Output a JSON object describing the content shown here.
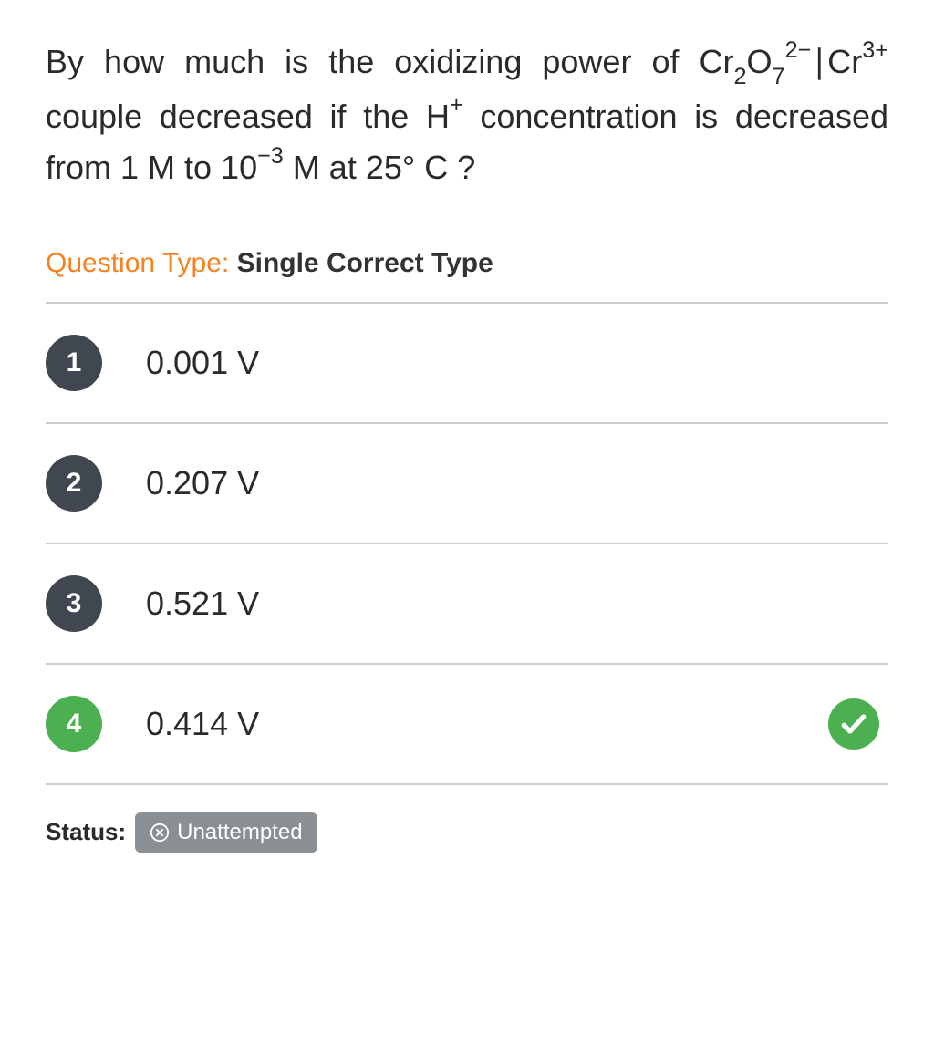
{
  "question": {
    "text_html": "By how much is the oxidizing power of Cr<span class='sub'>2</span>O<span class='sub'>7</span><span class='sup'>2−</span>∣Cr<span class='sup'>3+</span> couple decreased if the H<span class='sup'>+</span> concentration is decreased from 1 M to 10<span class='sup'>−3</span> M at 25° C ?"
  },
  "question_type": {
    "label": "Question Type:",
    "value": "Single Correct Type",
    "label_color": "#f58220",
    "value_color": "#333333"
  },
  "options": [
    {
      "num": "1",
      "label": "0.001 V",
      "badge_bg": "#414750",
      "correct": false
    },
    {
      "num": "2",
      "label": "0.207 V",
      "badge_bg": "#414750",
      "correct": false
    },
    {
      "num": "3",
      "label": "0.521 V",
      "badge_bg": "#414750",
      "correct": false
    },
    {
      "num": "4",
      "label": "0.414 V",
      "badge_bg": "#4caf50",
      "correct": true
    }
  ],
  "correct_check_bg": "#4caf50",
  "status": {
    "label": "Status:",
    "pill_text": "Unattempted",
    "pill_bg": "#8a8f94"
  },
  "divider_color": "#cccccc"
}
